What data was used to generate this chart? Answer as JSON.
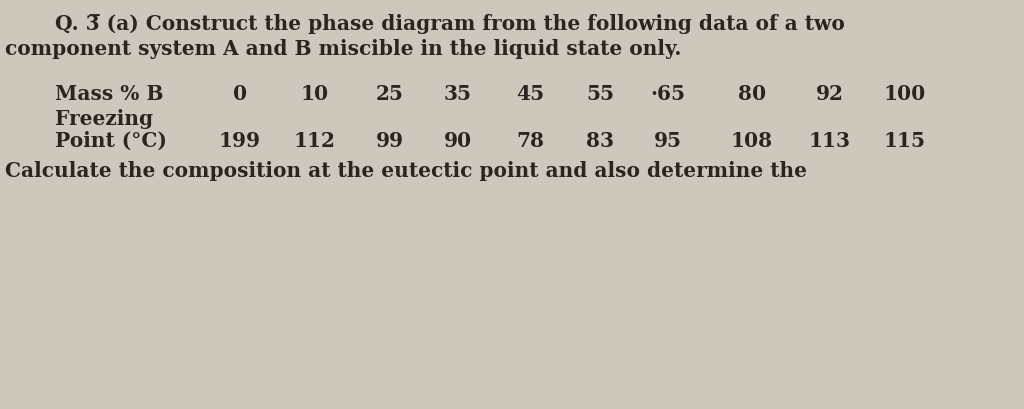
{
  "title_line1": "Q. 3̅ (a) Construct the phase diagram from the following data of a two",
  "title_line2": "component system A and B miscible in the liquid state only.",
  "row1_label": "Mass % B",
  "row1_values": [
    "0",
    "10",
    "25",
    "35",
    "45",
    "55",
    "·65",
    "80",
    "92",
    "100"
  ],
  "row2_label1": "Freezing",
  "row2_label2": "Point (°C)",
  "row2_values": [
    "199",
    "112",
    "99",
    "90",
    "78",
    "83",
    "95",
    "108",
    "113",
    "115"
  ],
  "footer": "Calculate the composition at the eutectic point and also determine the",
  "bg_color": "#cdc8bc",
  "text_color": "#2b2520",
  "title_fontsize": 14.5,
  "table_fontsize": 14.5,
  "footer_fontsize": 14.5
}
